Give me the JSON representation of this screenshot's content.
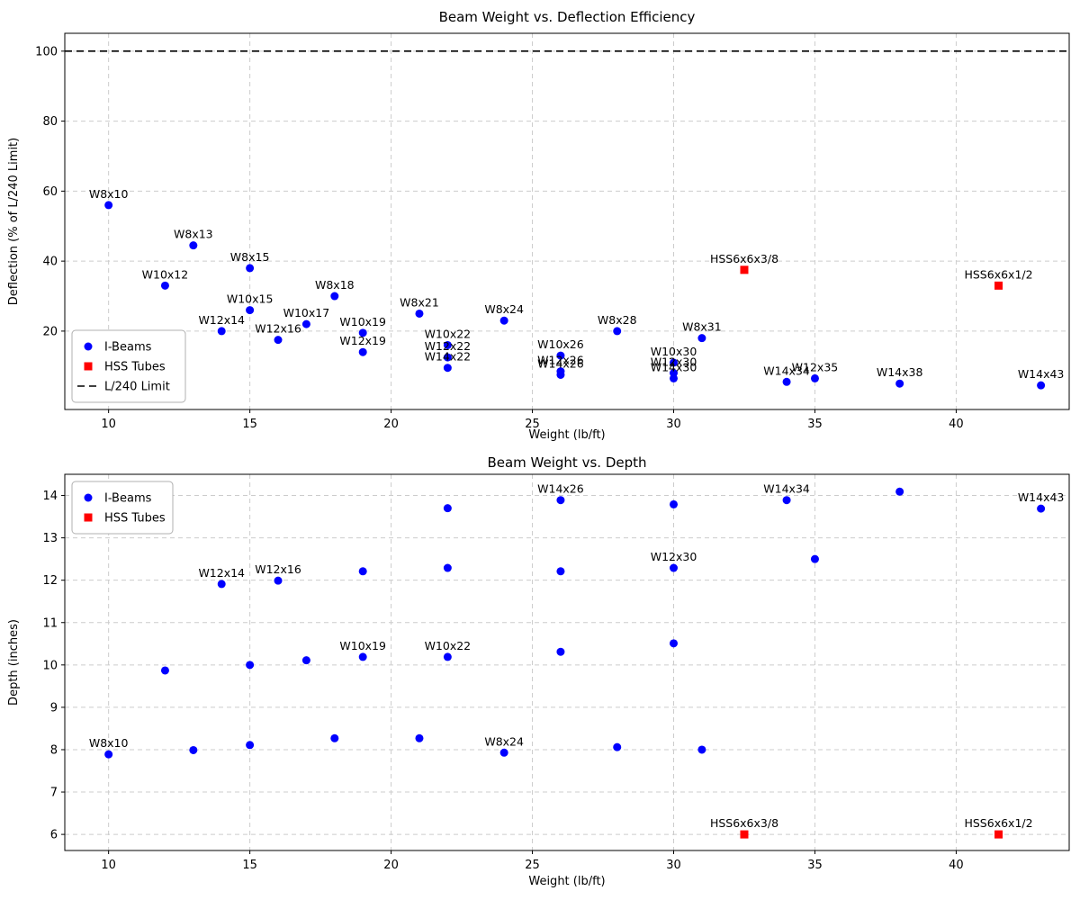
{
  "figure": {
    "background": "#ffffff",
    "accent_blue": "#0000ff",
    "accent_red": "#ff0000",
    "grid_color": "#cccccc"
  },
  "chart_data": [
    {
      "type": "scatter",
      "title": "Beam Weight vs. Deflection Efficiency",
      "xlabel": "Weight (lb/ft)",
      "ylabel": "Deflection (% of L/240 Limit)",
      "xlim": [
        8.45,
        44.0
      ],
      "ylim": [
        -2.4,
        105.1
      ],
      "xticks": [
        10,
        15,
        20,
        25,
        30,
        35,
        40
      ],
      "yticks": [
        20,
        40,
        60,
        80,
        100
      ],
      "grid": true,
      "legend_position": "lower-left",
      "reference_line": {
        "y": 100,
        "label": "L/240 Limit",
        "color": "#000000",
        "style": "dashed"
      },
      "series": [
        {
          "name": "I-Beams",
          "marker": "circle",
          "color": "#0000ff",
          "points": [
            {
              "label": "W8x10",
              "x": 10,
              "y": 56,
              "annotate": true
            },
            {
              "label": "W10x12",
              "x": 12,
              "y": 33,
              "annotate": true
            },
            {
              "label": "W8x13",
              "x": 13,
              "y": 44.5,
              "annotate": true
            },
            {
              "label": "W12x14",
              "x": 14,
              "y": 20,
              "annotate": true
            },
            {
              "label": "W8x15",
              "x": 15,
              "y": 38,
              "annotate": true
            },
            {
              "label": "W10x15",
              "x": 15,
              "y": 26,
              "annotate": true
            },
            {
              "label": "W12x16",
              "x": 16,
              "y": 17.5,
              "annotate": true
            },
            {
              "label": "W10x17",
              "x": 17,
              "y": 22,
              "annotate": true
            },
            {
              "label": "W8x18",
              "x": 18,
              "y": 30,
              "annotate": true
            },
            {
              "label": "W10x19",
              "x": 19,
              "y": 19.5,
              "annotate": true
            },
            {
              "label": "W12x19",
              "x": 19,
              "y": 14,
              "annotate": true
            },
            {
              "label": "W8x21",
              "x": 21,
              "y": 25,
              "annotate": true
            },
            {
              "label": "W10x22",
              "x": 22,
              "y": 16,
              "annotate": true
            },
            {
              "label": "W12x22",
              "x": 22,
              "y": 12.5,
              "annotate": true
            },
            {
              "label": "W14x22",
              "x": 22,
              "y": 9.5,
              "annotate": true
            },
            {
              "label": "W8x24",
              "x": 24,
              "y": 23,
              "annotate": true
            },
            {
              "label": "W10x26",
              "x": 26,
              "y": 13,
              "annotate": true
            },
            {
              "label": "W12x26",
              "x": 26,
              "y": 8.5,
              "annotate": true
            },
            {
              "label": "W14x26",
              "x": 26,
              "y": 7.5,
              "annotate": true
            },
            {
              "label": "W8x28",
              "x": 28,
              "y": 20,
              "annotate": true
            },
            {
              "label": "W10x30",
              "x": 30,
              "y": 11,
              "annotate": true
            },
            {
              "label": "W12x30",
              "x": 30,
              "y": 8,
              "annotate": true
            },
            {
              "label": "W14x30",
              "x": 30,
              "y": 6.5,
              "annotate": true
            },
            {
              "label": "W8x31",
              "x": 31,
              "y": 18,
              "annotate": true
            },
            {
              "label": "W14x34",
              "x": 34,
              "y": 5.5,
              "annotate": true
            },
            {
              "label": "W12x35",
              "x": 35,
              "y": 6.5,
              "annotate": true
            },
            {
              "label": "W14x38",
              "x": 38,
              "y": 5,
              "annotate": true
            },
            {
              "label": "W14x43",
              "x": 43,
              "y": 4.5,
              "annotate": true
            }
          ]
        },
        {
          "name": "HSS Tubes",
          "marker": "square",
          "color": "#ff0000",
          "points": [
            {
              "label": "HSS6x6x3/8",
              "x": 32.5,
              "y": 37.5,
              "annotate": true
            },
            {
              "label": "HSS6x6x1/2",
              "x": 41.5,
              "y": 33,
              "annotate": true
            }
          ]
        }
      ],
      "legend": [
        {
          "label": "I-Beams",
          "marker": "circle",
          "color": "#0000ff"
        },
        {
          "label": "HSS Tubes",
          "marker": "square",
          "color": "#ff0000"
        },
        {
          "label": "L/240 Limit",
          "marker": "dashed-line",
          "color": "#000000"
        }
      ]
    },
    {
      "type": "scatter",
      "title": "Beam Weight vs. Depth",
      "xlabel": "Weight (lb/ft)",
      "ylabel": "Depth (inches)",
      "xlim": [
        8.45,
        44.0
      ],
      "ylim": [
        5.62,
        14.5
      ],
      "xticks": [
        10,
        15,
        20,
        25,
        30,
        35,
        40
      ],
      "yticks": [
        6,
        7,
        8,
        9,
        10,
        11,
        12,
        13,
        14
      ],
      "grid": true,
      "legend_position": "upper-left",
      "series": [
        {
          "name": "I-Beams",
          "marker": "circle",
          "color": "#0000ff",
          "points": [
            {
              "label": "W8x10",
              "x": 10,
              "y": 7.89,
              "annotate": true
            },
            {
              "label": "W10x12",
              "x": 12,
              "y": 9.87
            },
            {
              "label": "W8x13",
              "x": 13,
              "y": 7.99
            },
            {
              "label": "W12x14",
              "x": 14,
              "y": 11.91,
              "annotate": true
            },
            {
              "label": "W8x15",
              "x": 15,
              "y": 8.11
            },
            {
              "label": "W10x15",
              "x": 15,
              "y": 10.0
            },
            {
              "label": "W12x16",
              "x": 16,
              "y": 11.99,
              "annotate": true
            },
            {
              "label": "W10x17",
              "x": 17,
              "y": 10.11
            },
            {
              "label": "W8x18",
              "x": 18,
              "y": 8.27
            },
            {
              "label": "W10x19",
              "x": 19,
              "y": 10.19,
              "annotate": true
            },
            {
              "label": "W12x19",
              "x": 19,
              "y": 12.21
            },
            {
              "label": "W8x21",
              "x": 21,
              "y": 8.27
            },
            {
              "label": "W10x22",
              "x": 22,
              "y": 10.19,
              "annotate": true
            },
            {
              "label": "W12x22",
              "x": 22,
              "y": 12.29
            },
            {
              "label": "W14x22",
              "x": 22,
              "y": 13.7
            },
            {
              "label": "W8x24",
              "x": 24,
              "y": 7.93,
              "annotate": true
            },
            {
              "label": "W10x26",
              "x": 26,
              "y": 10.31
            },
            {
              "label": "W12x26",
              "x": 26,
              "y": 12.21
            },
            {
              "label": "W14x26",
              "x": 26,
              "y": 13.89,
              "annotate": true
            },
            {
              "label": "W8x28",
              "x": 28,
              "y": 8.06
            },
            {
              "label": "W10x30",
              "x": 30,
              "y": 10.51
            },
            {
              "label": "W12x30",
              "x": 30,
              "y": 12.29,
              "annotate": true
            },
            {
              "label": "W14x30",
              "x": 30,
              "y": 13.79
            },
            {
              "label": "W8x31",
              "x": 31,
              "y": 8.0
            },
            {
              "label": "W14x34",
              "x": 34,
              "y": 13.89,
              "annotate": true
            },
            {
              "label": "W12x35",
              "x": 35,
              "y": 12.5
            },
            {
              "label": "W14x38",
              "x": 38,
              "y": 14.09
            },
            {
              "label": "W14x43",
              "x": 43,
              "y": 13.69,
              "annotate": true
            }
          ]
        },
        {
          "name": "HSS Tubes",
          "marker": "square",
          "color": "#ff0000",
          "points": [
            {
              "label": "HSS6x6x3/8",
              "x": 32.5,
              "y": 6.0,
              "annotate": true
            },
            {
              "label": "HSS6x6x1/2",
              "x": 41.5,
              "y": 6.0,
              "annotate": true
            }
          ]
        }
      ],
      "legend": [
        {
          "label": "I-Beams",
          "marker": "circle",
          "color": "#0000ff"
        },
        {
          "label": "HSS Tubes",
          "marker": "square",
          "color": "#ff0000"
        }
      ]
    }
  ]
}
